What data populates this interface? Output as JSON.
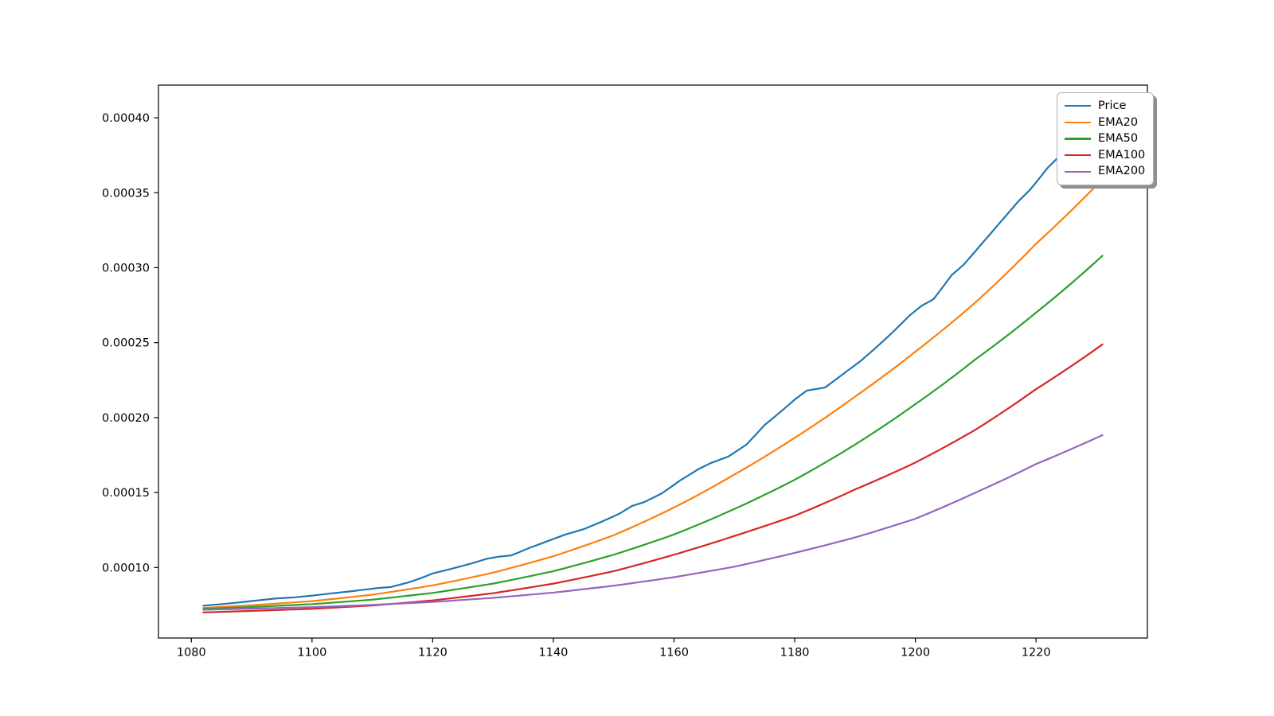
{
  "figure": {
    "background": "#ffffff",
    "axes_edge_color": "#000000",
    "tick_label_color": "#000000"
  },
  "chart_data": {
    "type": "line",
    "title": "",
    "xlabel": "",
    "ylabel": "",
    "grid": false,
    "xlim": [
      1074.55,
      1238.45
    ],
    "ylim": [
      5.29e-05,
      0.0004218
    ],
    "xticks": [
      1080,
      1100,
      1120,
      1140,
      1160,
      1180,
      1200,
      1220
    ],
    "xtick_labels": [
      "1080",
      "1100",
      "1120",
      "1140",
      "1160",
      "1180",
      "1200",
      "1220"
    ],
    "yticks": [
      0.0001,
      0.00015,
      0.0002,
      0.00025,
      0.0003,
      0.00035,
      0.0004
    ],
    "ytick_labels": [
      "0.00010",
      "0.00015",
      "0.00020",
      "0.00025",
      "0.00030",
      "0.00035",
      "0.00040"
    ],
    "legend": {
      "position": "upper right",
      "entries": [
        {
          "label": "Price",
          "color": "#1f77b4"
        },
        {
          "label": "EMA20",
          "color": "#ff7f0e"
        },
        {
          "label": "EMA50",
          "color": "#2ca02c"
        },
        {
          "label": "EMA100",
          "color": "#d62728"
        },
        {
          "label": "EMA200",
          "color": "#9467bd"
        }
      ]
    },
    "series": [
      {
        "name": "Price",
        "color": "#1f77b4",
        "points": [
          [
            1082,
            7.45e-05
          ],
          [
            1085,
            7.55e-05
          ],
          [
            1088,
            7.67e-05
          ],
          [
            1091,
            7.8e-05
          ],
          [
            1094,
            7.93e-05
          ],
          [
            1097,
            8e-05
          ],
          [
            1100,
            8.12e-05
          ],
          [
            1103,
            8.26e-05
          ],
          [
            1106,
            8.39e-05
          ],
          [
            1109,
            8.53e-05
          ],
          [
            1111,
            8.63e-05
          ],
          [
            1113,
            8.69e-05
          ],
          [
            1116,
            9e-05
          ],
          [
            1118,
            9.28e-05
          ],
          [
            1120,
            9.6e-05
          ],
          [
            1123,
            9.9e-05
          ],
          [
            1126,
            0.0001022
          ],
          [
            1129,
            0.0001058
          ],
          [
            1131,
            0.0001072
          ],
          [
            1133,
            0.000108
          ],
          [
            1136,
            0.000113
          ],
          [
            1139,
            0.0001175
          ],
          [
            1142,
            0.000122
          ],
          [
            1145,
            0.0001255
          ],
          [
            1148,
            0.0001305
          ],
          [
            1151,
            0.000136
          ],
          [
            1153,
            0.000141
          ],
          [
            1155,
            0.0001435
          ],
          [
            1158,
            0.0001495
          ],
          [
            1161,
            0.000158
          ],
          [
            1164,
            0.0001655
          ],
          [
            1166,
            0.0001695
          ],
          [
            1169,
            0.000174
          ],
          [
            1172,
            0.000182
          ],
          [
            1175,
            0.000195
          ],
          [
            1178,
            0.000205
          ],
          [
            1180,
            0.000212
          ],
          [
            1182,
            0.000218
          ],
          [
            1185,
            0.00022
          ],
          [
            1188,
            0.000229
          ],
          [
            1191,
            0.000238
          ],
          [
            1193,
            0.000245
          ],
          [
            1196,
            0.000256
          ],
          [
            1199,
            0.000268
          ],
          [
            1201,
            0.0002745
          ],
          [
            1203,
            0.000279
          ],
          [
            1206,
            0.000295
          ],
          [
            1208,
            0.000302
          ],
          [
            1211,
            0.000316
          ],
          [
            1214,
            0.00033
          ],
          [
            1217,
            0.000344
          ],
          [
            1219,
            0.000352
          ],
          [
            1222,
            0.000367
          ],
          [
            1225,
            0.000379
          ],
          [
            1228,
            0.000392
          ],
          [
            1231,
            0.000405
          ]
        ]
      },
      {
        "name": "EMA20",
        "color": "#ff7f0e",
        "points": [
          [
            1082,
            7.3e-05
          ],
          [
            1090,
            7.48e-05
          ],
          [
            1100,
            7.75e-05
          ],
          [
            1110,
            8.18e-05
          ],
          [
            1120,
            8.8e-05
          ],
          [
            1130,
            9.65e-05
          ],
          [
            1140,
            0.0001075
          ],
          [
            1150,
            0.0001215
          ],
          [
            1160,
            0.00014
          ],
          [
            1170,
            0.000162
          ],
          [
            1180,
            0.0001865
          ],
          [
            1190,
            0.000214
          ],
          [
            1200,
            0.000244
          ],
          [
            1210,
            0.000277
          ],
          [
            1220,
            0.000316
          ],
          [
            1231,
            0.000359
          ]
        ]
      },
      {
        "name": "EMA50",
        "color": "#2ca02c",
        "points": [
          [
            1082,
            7.24e-05
          ],
          [
            1090,
            7.36e-05
          ],
          [
            1100,
            7.55e-05
          ],
          [
            1110,
            7.85e-05
          ],
          [
            1120,
            8.3e-05
          ],
          [
            1130,
            8.92e-05
          ],
          [
            1140,
            9.75e-05
          ],
          [
            1150,
            0.0001085
          ],
          [
            1160,
            0.000122
          ],
          [
            1170,
            0.000139
          ],
          [
            1180,
            0.0001585
          ],
          [
            1190,
            0.000182
          ],
          [
            1200,
            0.000209
          ],
          [
            1210,
            0.000239
          ],
          [
            1220,
            0.00027
          ],
          [
            1231,
            0.000308
          ]
        ]
      },
      {
        "name": "EMA100",
        "color": "#d62728",
        "points": [
          [
            1082,
            7e-05
          ],
          [
            1090,
            7.1e-05
          ],
          [
            1100,
            7.24e-05
          ],
          [
            1110,
            7.46e-05
          ],
          [
            1120,
            7.8e-05
          ],
          [
            1130,
            8.28e-05
          ],
          [
            1140,
            8.92e-05
          ],
          [
            1150,
            9.75e-05
          ],
          [
            1160,
            0.0001085
          ],
          [
            1170,
            0.000121
          ],
          [
            1180,
            0.0001345
          ],
          [
            1190,
            0.000152
          ],
          [
            1200,
            0.00017
          ],
          [
            1210,
            0.000192
          ],
          [
            1220,
            0.000219
          ],
          [
            1231,
            0.0002488
          ]
        ]
      },
      {
        "name": "EMA200",
        "color": "#9467bd",
        "points": [
          [
            1082,
            7.18e-05
          ],
          [
            1090,
            7.25e-05
          ],
          [
            1100,
            7.35e-05
          ],
          [
            1110,
            7.5e-05
          ],
          [
            1120,
            7.7e-05
          ],
          [
            1130,
            7.97e-05
          ],
          [
            1140,
            8.32e-05
          ],
          [
            1150,
            8.78e-05
          ],
          [
            1160,
            9.35e-05
          ],
          [
            1170,
            0.0001005
          ],
          [
            1180,
            0.0001097
          ],
          [
            1190,
            0.00012
          ],
          [
            1200,
            0.0001325
          ],
          [
            1210,
            0.00015
          ],
          [
            1220,
            0.000169
          ],
          [
            1231,
            0.0001883
          ]
        ]
      }
    ]
  }
}
